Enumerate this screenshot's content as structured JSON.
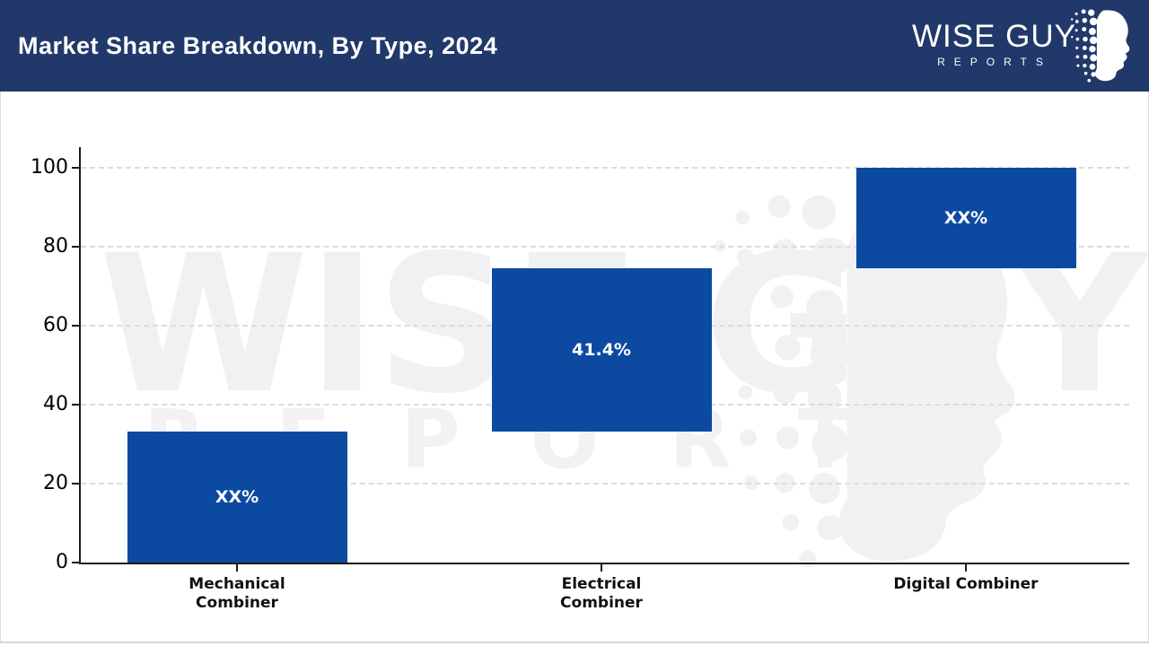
{
  "header": {
    "title": "Market Share Breakdown, By Type, 2024",
    "brand": {
      "name": "WISE GUY",
      "sub": "REPORTS"
    },
    "bg_color": "#21386a"
  },
  "watermark": {
    "line1": "WISE GUY",
    "line2": "REPORTS"
  },
  "chart_data": {
    "type": "bar",
    "variant": "waterfall",
    "title": "Market Share Breakdown, By Type, 2024",
    "categories": [
      "Mechanical Combiner",
      "Electrical Combiner",
      "Digital Combiner"
    ],
    "category_lines": [
      [
        "Mechanical",
        "Combiner"
      ],
      [
        "Electrical",
        "Combiner"
      ],
      [
        "Digital Combiner"
      ]
    ],
    "segments": [
      {
        "category": "Mechanical Combiner",
        "start": 0,
        "end": 33.2,
        "value": 33.2,
        "label": "XX%"
      },
      {
        "category": "Electrical Combiner",
        "start": 33.2,
        "end": 74.6,
        "value": 41.4,
        "label": "41.4%"
      },
      {
        "category": "Digital Combiner",
        "start": 74.6,
        "end": 100,
        "value": 25.4,
        "label": "XX%"
      }
    ],
    "values": [
      33.2,
      41.4,
      25.4
    ],
    "value_labels": [
      "XX%",
      "41.4%",
      "XX%"
    ],
    "xlabel": "",
    "ylabel": "",
    "yticks": [
      0,
      20,
      40,
      60,
      80,
      100
    ],
    "ylim": [
      0,
      105
    ],
    "bar_color": "#0b4aa0",
    "bar_label_color": "#ffffff",
    "grid": true,
    "gridline_style": "dashed",
    "legend": false
  }
}
